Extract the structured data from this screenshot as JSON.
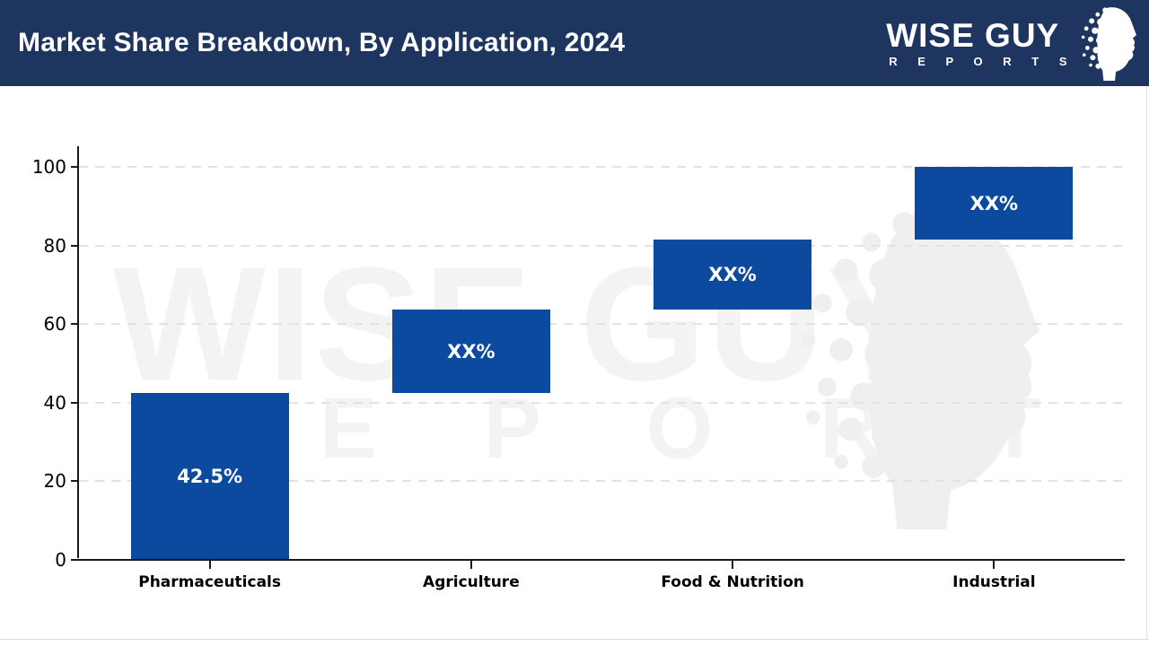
{
  "header": {
    "title": "Market Share Breakdown, By Application, 2024",
    "logo": {
      "line1": "WISE GUY",
      "line2": "R E P O R T S"
    }
  },
  "watermark": {
    "line1": "WISE GUY",
    "line2": "R E P O R T S"
  },
  "colors": {
    "header_bg": "#1e3560",
    "bar_blue": "#0b4a9e",
    "axis": "#1a1a1a",
    "gridline": "#e2e2e2",
    "watermark": "#f3f3f3"
  },
  "chart_data": {
    "type": "bar",
    "subtype": "waterfall",
    "title": "Market Share Breakdown, By Application, 2024",
    "categories": [
      "Pharmaceuticals",
      "Agriculture",
      "Food & Nutrition",
      "Industrial"
    ],
    "bars": [
      {
        "category": "Pharmaceuticals",
        "start": 0,
        "end": 42.5,
        "label": "42.5%"
      },
      {
        "category": "Agriculture",
        "start": 42.5,
        "end": 63.6,
        "label": "XX%"
      },
      {
        "category": "Food & Nutrition",
        "start": 63.6,
        "end": 81.4,
        "label": "XX%"
      },
      {
        "category": "Industrial",
        "start": 81.4,
        "end": 100,
        "label": "XX%"
      }
    ],
    "ylim": [
      0,
      100
    ],
    "yticks": [
      0,
      20,
      40,
      60,
      80,
      100
    ],
    "xlabel": "",
    "ylabel": "",
    "grid": "horizontal-dashed",
    "legend": "none",
    "bar_color": "#0b4a9e",
    "bar_label_color": "#ffffff"
  }
}
